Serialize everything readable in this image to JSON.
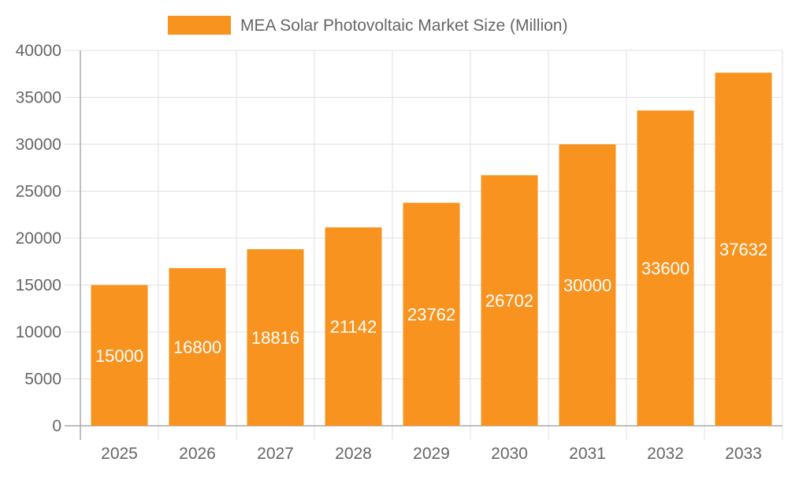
{
  "chart_data": {
    "type": "bar",
    "title": "",
    "xlabel": "",
    "ylabel": "",
    "categories": [
      "2025",
      "2026",
      "2027",
      "2028",
      "2029",
      "2030",
      "2031",
      "2032",
      "2033"
    ],
    "series": [
      {
        "name": "MEA Solar Photovoltaic Market Size (Million)",
        "values": [
          15000,
          16800,
          18816,
          21142,
          23762,
          26702,
          30000,
          33600,
          37632
        ],
        "color": "#F7931E"
      }
    ],
    "ylim": [
      0,
      40000
    ],
    "yticks": [
      0,
      5000,
      10000,
      15000,
      20000,
      25000,
      30000,
      35000,
      40000
    ],
    "grid": true,
    "legend_position": "top",
    "data_labels": true
  }
}
